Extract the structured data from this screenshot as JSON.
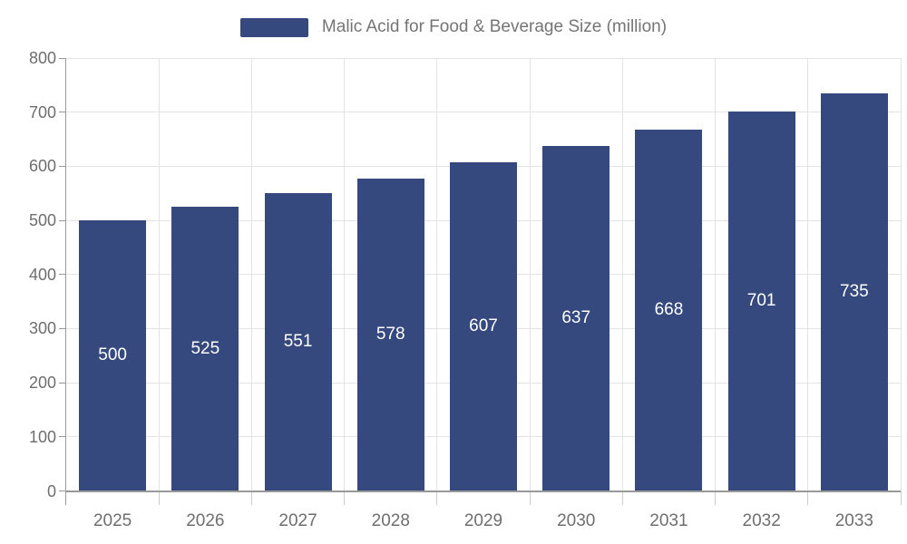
{
  "chart_data": {
    "type": "bar",
    "title": "Malic Acid for Food & Beverage Size (million)",
    "categories": [
      "2025",
      "2026",
      "2027",
      "2028",
      "2029",
      "2030",
      "2031",
      "2032",
      "2033"
    ],
    "series": [
      {
        "name": "Malic Acid for Food & Beverage Size (million)",
        "values": [
          500,
          525,
          551,
          578,
          607,
          637,
          668,
          701,
          735
        ]
      }
    ],
    "xlabel": "",
    "ylabel": "",
    "ylim": [
      0,
      800
    ],
    "yticks": [
      0,
      100,
      200,
      300,
      400,
      500,
      600,
      700,
      800
    ],
    "grid": "horizontal-and-vertical",
    "legend_position": "top-center",
    "value_labels": "inside-center",
    "colors": {
      "bar": "#35497e",
      "value_label": "#ffffff",
      "legend_text": "#757575",
      "tick_label": "#6e6e6e",
      "grid_line": "#e3e3e3",
      "axis_line": "#999999",
      "minor_tick": "#cccccc",
      "background": "#ffffff"
    }
  }
}
